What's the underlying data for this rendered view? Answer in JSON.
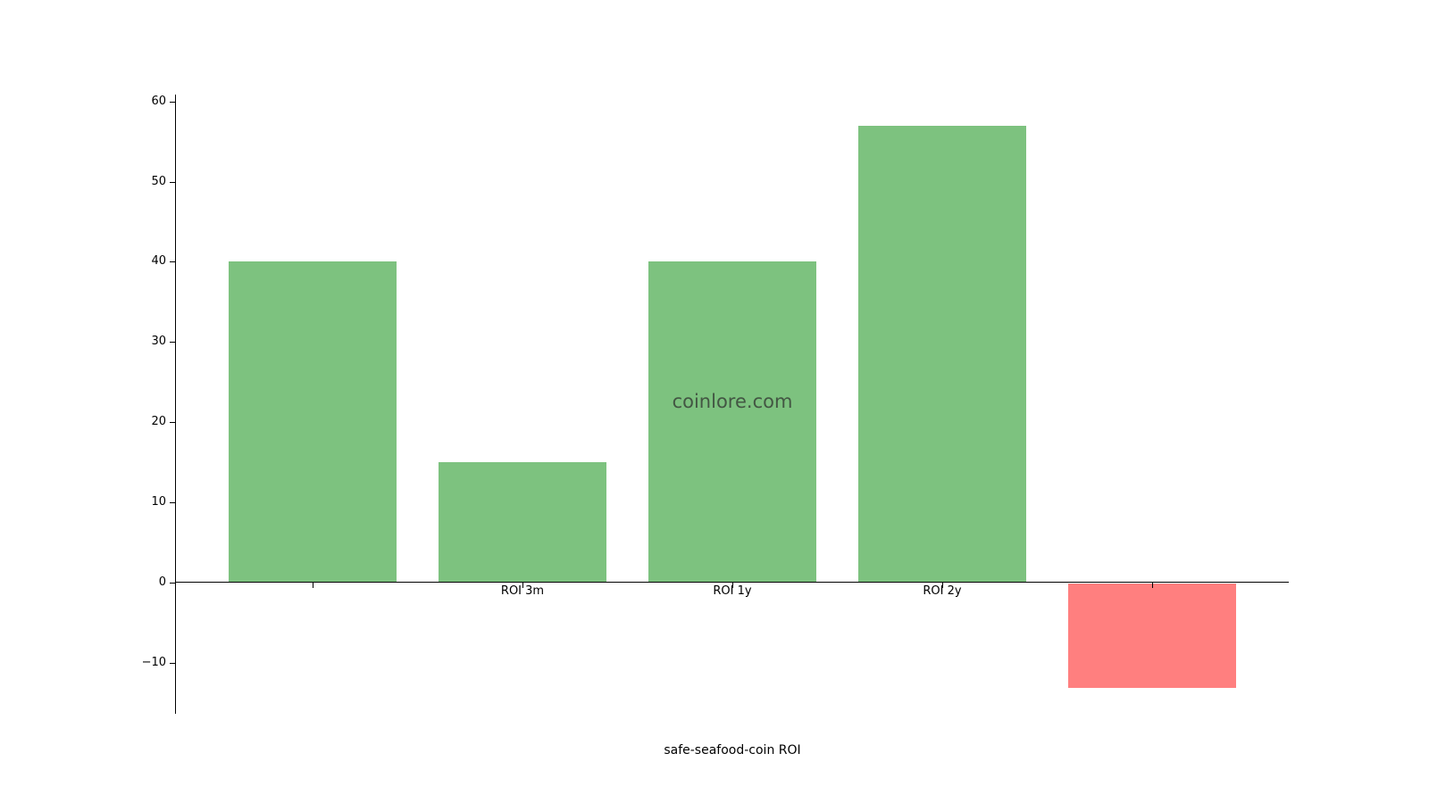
{
  "chart_data": {
    "type": "bar",
    "title": "",
    "xlabel": "safe-seafood-coin ROI",
    "ylabel": "",
    "watermark": "coinlore.com",
    "categories": [
      "",
      "ROI 3m",
      "ROI 1y",
      "ROI 2y",
      ""
    ],
    "values": [
      40,
      15,
      40,
      57,
      -13
    ],
    "yticks": [
      60,
      50,
      40,
      30,
      20,
      10,
      0,
      -10
    ],
    "ylim": [
      -16.5,
      60.5
    ],
    "grid": false,
    "legend": "none",
    "colors": {
      "positive_bar": "#7dc27f",
      "negative_bar": "#ff7f7f",
      "axis": "#000000",
      "tick_label": "#000000",
      "watermark_text": "rgba(45,45,45,0.72)"
    }
  }
}
